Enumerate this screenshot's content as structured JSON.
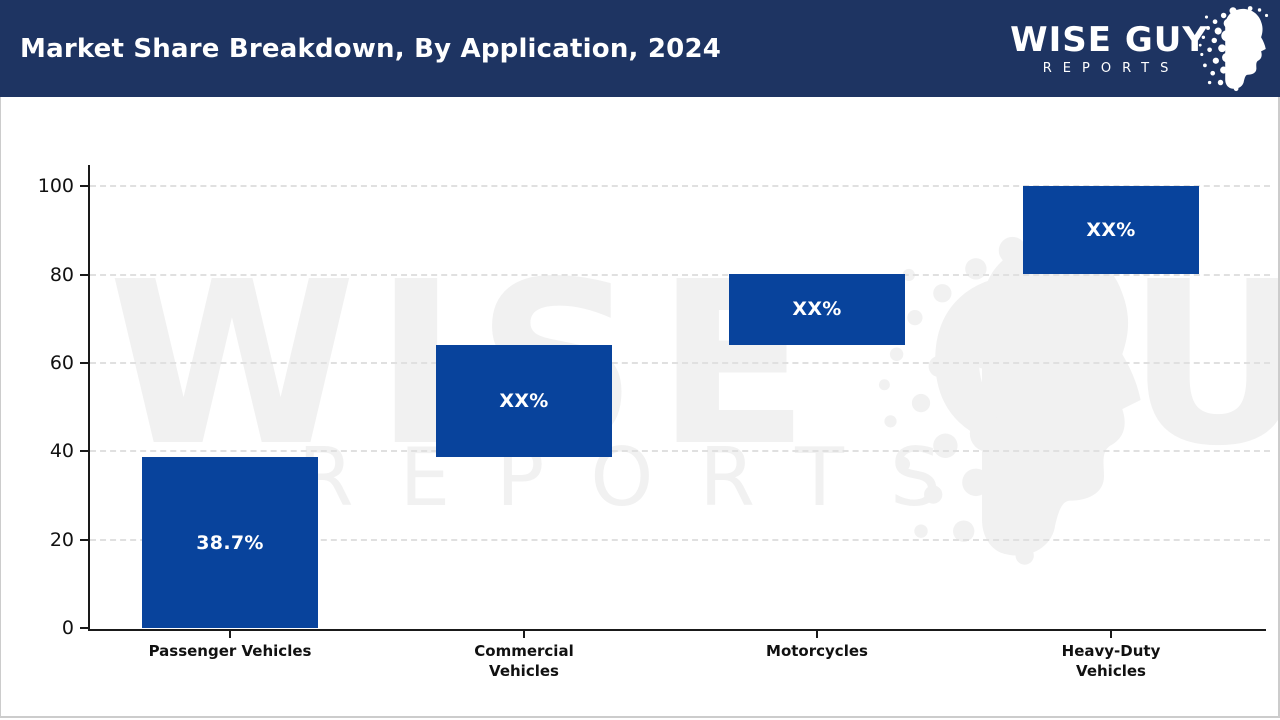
{
  "header": {
    "title": "Market Share Breakdown, By Application, 2024",
    "logo": {
      "line1": "WISE GUY",
      "line2": "REPORTS"
    }
  },
  "watermark": {
    "line1": "WISE GUY",
    "line2": "REPORTS"
  },
  "colors": {
    "header_bg": "#1e3462",
    "bar_blue": "#08439c",
    "bar_label": "#ffffff",
    "gridline": "#e0e0e0",
    "axis": "#1a1a1a",
    "watermark": "#f1f1f1",
    "edge_border": "#cccccc"
  },
  "chart_data": {
    "type": "bar",
    "subtype": "waterfall",
    "title": "Market Share Breakdown, By Application, 2024",
    "categories": [
      "Passenger Vehicles",
      "Commercial Vehicles",
      "Motorcycles",
      "Heavy-Duty Vehicles"
    ],
    "categories_display": [
      "Passenger Vehicles",
      "Commercial\nVehicles",
      "Motorcycles",
      "Heavy-Duty\nVehicles"
    ],
    "segments": [
      {
        "label": "38.7%",
        "start": 0,
        "end": 38.7
      },
      {
        "label": "XX%",
        "start": 38.7,
        "end": 64.1
      },
      {
        "label": "XX%",
        "start": 64.1,
        "end": 80.2
      },
      {
        "label": "XX%",
        "start": 80.2,
        "end": 100
      }
    ],
    "values": [
      38.7,
      25.4,
      16.1,
      19.8
    ],
    "xlabel": "",
    "ylabel": "",
    "ylim": [
      0,
      100
    ],
    "yticks": [
      0,
      20,
      40,
      60,
      80,
      100
    ],
    "grid": "horizontal-dashed",
    "legend": "none",
    "bar_color": "#08439c",
    "bar_label_color": "#ffffff"
  }
}
